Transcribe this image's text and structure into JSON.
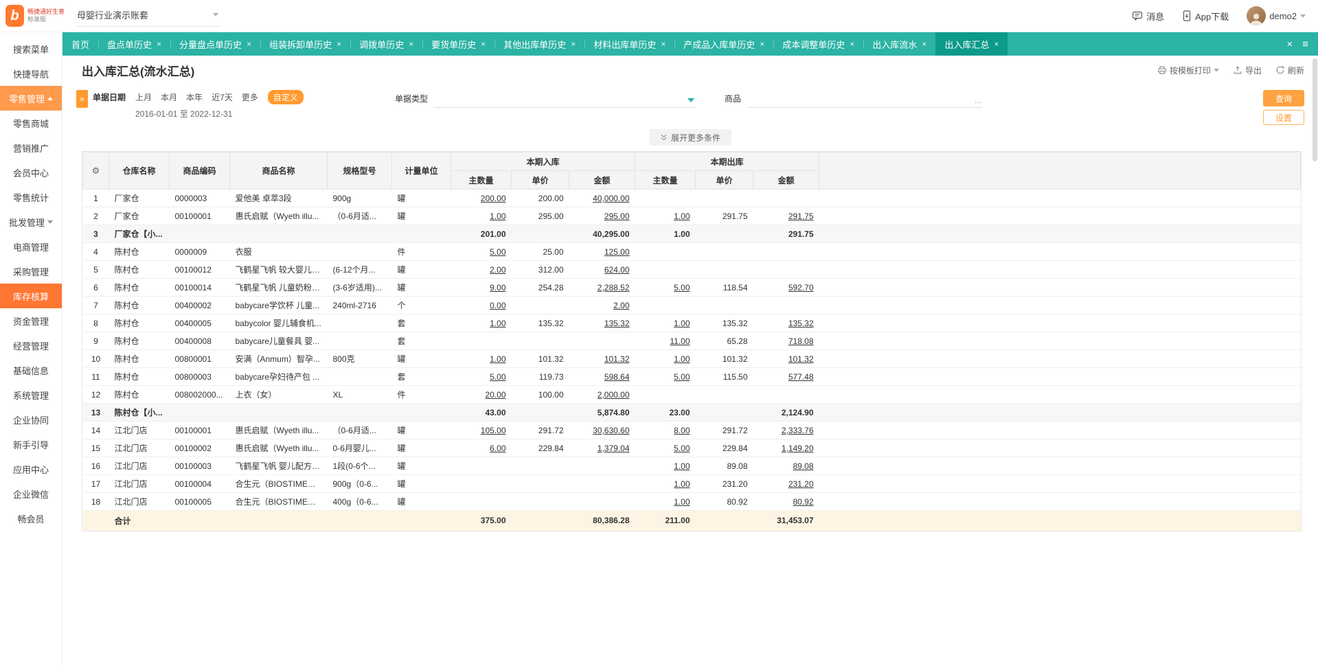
{
  "colors": {
    "teal_bar": "#2bb3a3",
    "teal_active_tab": "#0c9a8b",
    "sidebar_orange": "#ff9a4d",
    "sidebar_orange_active": "#ff7733",
    "query_button_orange": "#ffa241",
    "footer_row_bg": "#fdf4e3"
  },
  "topbar": {
    "brand_line1": "畅捷通好生意",
    "brand_line2": "标准版",
    "account": "母婴行业演示账套",
    "messages": "消息",
    "app_download": "App下载",
    "username": "demo2"
  },
  "sidebar": {
    "items": [
      {
        "label": "搜索菜单"
      },
      {
        "label": "快捷导航"
      },
      {
        "label": "零售管理",
        "style": "orange",
        "arrow": "up"
      },
      {
        "label": "零售商城"
      },
      {
        "label": "营销推广"
      },
      {
        "label": "会员中心"
      },
      {
        "label": "零售统计"
      },
      {
        "label": "批发管理",
        "arrow": "down"
      },
      {
        "label": "电商管理"
      },
      {
        "label": "采购管理"
      },
      {
        "label": "库存核算",
        "style": "orange-strong"
      },
      {
        "label": "资金管理"
      },
      {
        "label": "经营管理"
      },
      {
        "label": "基础信息"
      },
      {
        "label": "系统管理"
      },
      {
        "label": "企业协同"
      },
      {
        "label": "新手引导"
      },
      {
        "label": "应用中心"
      },
      {
        "label": "企业微信"
      },
      {
        "label": "畅会员"
      }
    ]
  },
  "tabs": [
    {
      "label": "首页",
      "closable": false,
      "active": false
    },
    {
      "label": "盘点单历史",
      "closable": true,
      "active": false
    },
    {
      "label": "分量盘点单历史",
      "closable": true,
      "active": false
    },
    {
      "label": "组装拆卸单历史",
      "closable": true,
      "active": false
    },
    {
      "label": "调拨单历史",
      "closable": true,
      "active": false
    },
    {
      "label": "要货单历史",
      "closable": true,
      "active": false
    },
    {
      "label": "其他出库单历史",
      "closable": true,
      "active": false
    },
    {
      "label": "材料出库单历史",
      "closable": true,
      "active": false
    },
    {
      "label": "产成品入库单历史",
      "closable": true,
      "active": false
    },
    {
      "label": "成本调整单历史",
      "closable": true,
      "active": false
    },
    {
      "label": "出入库流水",
      "closable": true,
      "active": false
    },
    {
      "label": "出入库汇总",
      "closable": true,
      "active": true
    }
  ],
  "page": {
    "title": "出入库汇总(流水汇总)",
    "print": "按模板打印",
    "export": "导出",
    "refresh": "刷新"
  },
  "filters": {
    "date_label": "单据日期",
    "date_options": [
      "上月",
      "本月",
      "本年",
      "近7天",
      "更多"
    ],
    "custom_label": "自定义",
    "date_range": "2016-01-01 至 2022-12-31",
    "doc_type_label": "单据类型",
    "product_label": "商品",
    "ellipsis": "...",
    "query_button": "查询",
    "settings_button": "设置",
    "expand_more": "展开更多条件"
  },
  "table": {
    "headers": {
      "warehouse": "仓库名称",
      "code": "商品编码",
      "name": "商品名称",
      "spec": "规格型号",
      "unit": "计量单位",
      "in_group": "本期入库",
      "out_group": "本期出库",
      "qty": "主数量",
      "price": "单价",
      "amount": "金额"
    },
    "rows": [
      {
        "num": "1",
        "warehouse": "厂家仓",
        "code": "0000003",
        "name": "爱他美 卓萃3段",
        "spec": "900g",
        "unit": "罐",
        "in_qty": "200.00",
        "in_price": "200.00",
        "in_amt": "40,000.00",
        "out_qty": "",
        "out_price": "",
        "out_amt": "",
        "subtotal": false
      },
      {
        "num": "2",
        "warehouse": "厂家仓",
        "code": "00100001",
        "name": "惠氏启赋（Wyeth illu...",
        "spec": "（0-6月适...",
        "unit": "罐",
        "in_qty": "1.00",
        "in_price": "295.00",
        "in_amt": "295.00",
        "out_qty": "1.00",
        "out_price": "291.75",
        "out_amt": "291.75",
        "subtotal": false
      },
      {
        "num": "3",
        "warehouse": "厂家仓【小...",
        "code": "",
        "name": "",
        "spec": "",
        "unit": "",
        "in_qty": "201.00",
        "in_price": "",
        "in_amt": "40,295.00",
        "out_qty": "1.00",
        "out_price": "",
        "out_amt": "291.75",
        "subtotal": true
      },
      {
        "num": "4",
        "warehouse": "陈村仓",
        "code": "0000009",
        "name": "衣服",
        "spec": "",
        "unit": "件",
        "in_qty": "5.00",
        "in_price": "25.00",
        "in_amt": "125.00",
        "out_qty": "",
        "out_price": "",
        "out_amt": "",
        "subtotal": false
      },
      {
        "num": "5",
        "warehouse": "陈村仓",
        "code": "00100012",
        "name": "飞鹤星飞帆 较大婴儿配...",
        "spec": "(6-12个月...",
        "unit": "罐",
        "in_qty": "2.00",
        "in_price": "312.00",
        "in_amt": "624.00",
        "out_qty": "",
        "out_price": "",
        "out_amt": "",
        "subtotal": false
      },
      {
        "num": "6",
        "warehouse": "陈村仓",
        "code": "00100014",
        "name": "飞鹤星飞帆 儿童奶粉 4...",
        "spec": "(3-6岁适用)...",
        "unit": "罐",
        "in_qty": "9.00",
        "in_price": "254.28",
        "in_amt": "2,288.52",
        "out_qty": "5.00",
        "out_price": "118.54",
        "out_amt": "592.70",
        "subtotal": false
      },
      {
        "num": "7",
        "warehouse": "陈村仓",
        "code": "00400002",
        "name": "babycare学饮杯 儿童...",
        "spec": "240ml-2716",
        "unit": "个",
        "in_qty": "0.00",
        "in_price": "",
        "in_amt": "2.00",
        "out_qty": "",
        "out_price": "",
        "out_amt": "",
        "subtotal": false
      },
      {
        "num": "8",
        "warehouse": "陈村仓",
        "code": "00400005",
        "name": "babycolor 婴儿辅食机...",
        "spec": "",
        "unit": "套",
        "in_qty": "1.00",
        "in_price": "135.32",
        "in_amt": "135.32",
        "out_qty": "1.00",
        "out_price": "135.32",
        "out_amt": "135.32",
        "subtotal": false
      },
      {
        "num": "9",
        "warehouse": "陈村仓",
        "code": "00400008",
        "name": "babycare儿童餐具 婴...",
        "spec": "",
        "unit": "套",
        "in_qty": "",
        "in_price": "",
        "in_amt": "",
        "out_qty": "11.00",
        "out_price": "65.28",
        "out_amt": "718.08",
        "subtotal": false
      },
      {
        "num": "10",
        "warehouse": "陈村仓",
        "code": "00800001",
        "name": "安满（Anmum）智孕...",
        "spec": "800克",
        "unit": "罐",
        "in_qty": "1.00",
        "in_price": "101.32",
        "in_amt": "101.32",
        "out_qty": "1.00",
        "out_price": "101.32",
        "out_amt": "101.32",
        "subtotal": false
      },
      {
        "num": "11",
        "warehouse": "陈村仓",
        "code": "00800003",
        "name": "babycare孕妇待产包 ...",
        "spec": "",
        "unit": "套",
        "in_qty": "5.00",
        "in_price": "119.73",
        "in_amt": "598.64",
        "out_qty": "5.00",
        "out_price": "115.50",
        "out_amt": "577.48",
        "subtotal": false
      },
      {
        "num": "12",
        "warehouse": "陈村仓",
        "code": "008002000...",
        "name": "上衣（女）",
        "spec": "XL",
        "unit": "件",
        "in_qty": "20.00",
        "in_price": "100.00",
        "in_amt": "2,000.00",
        "out_qty": "",
        "out_price": "",
        "out_amt": "",
        "subtotal": false
      },
      {
        "num": "13",
        "warehouse": "陈村仓【小...",
        "code": "",
        "name": "",
        "spec": "",
        "unit": "",
        "in_qty": "43.00",
        "in_price": "",
        "in_amt": "5,874.80",
        "out_qty": "23.00",
        "out_price": "",
        "out_amt": "2,124.90",
        "subtotal": true
      },
      {
        "num": "14",
        "warehouse": "江北门店",
        "code": "00100001",
        "name": "惠氏启赋（Wyeth illu...",
        "spec": "（0-6月适...",
        "unit": "罐",
        "in_qty": "105.00",
        "in_price": "291.72",
        "in_amt": "30,630.60",
        "out_qty": "8.00",
        "out_price": "291.72",
        "out_amt": "2,333.76",
        "subtotal": false
      },
      {
        "num": "15",
        "warehouse": "江北门店",
        "code": "00100002",
        "name": "惠氏启赋（Wyeth illu...",
        "spec": "0-6月婴儿...",
        "unit": "罐",
        "in_qty": "6.00",
        "in_price": "229.84",
        "in_amt": "1,379.04",
        "out_qty": "5.00",
        "out_price": "229.84",
        "out_amt": "1,149.20",
        "subtotal": false
      },
      {
        "num": "16",
        "warehouse": "江北门店",
        "code": "00100003",
        "name": "飞鹤星飞帆 婴儿配方奶...",
        "spec": "1段(0-6个...",
        "unit": "罐",
        "in_qty": "",
        "in_price": "",
        "in_amt": "",
        "out_qty": "1.00",
        "out_price": "89.08",
        "out_amt": "89.08",
        "subtotal": false
      },
      {
        "num": "17",
        "warehouse": "江北门店",
        "code": "00100004",
        "name": "合生元（BIOSTIME）...",
        "spec": "900g（0-6...",
        "unit": "罐",
        "in_qty": "",
        "in_price": "",
        "in_amt": "",
        "out_qty": "1.00",
        "out_price": "231.20",
        "out_amt": "231.20",
        "subtotal": false
      },
      {
        "num": "18",
        "warehouse": "江北门店",
        "code": "00100005",
        "name": "合生元（BIOSTIME）...",
        "spec": "400g（0-6...",
        "unit": "罐",
        "in_qty": "",
        "in_price": "",
        "in_amt": "",
        "out_qty": "1.00",
        "out_price": "80.92",
        "out_amt": "80.92",
        "subtotal": false
      }
    ],
    "footer": {
      "label": "合计",
      "in_qty": "375.00",
      "in_amt": "80,386.28",
      "out_qty": "211.00",
      "out_amt": "31,453.07"
    }
  }
}
